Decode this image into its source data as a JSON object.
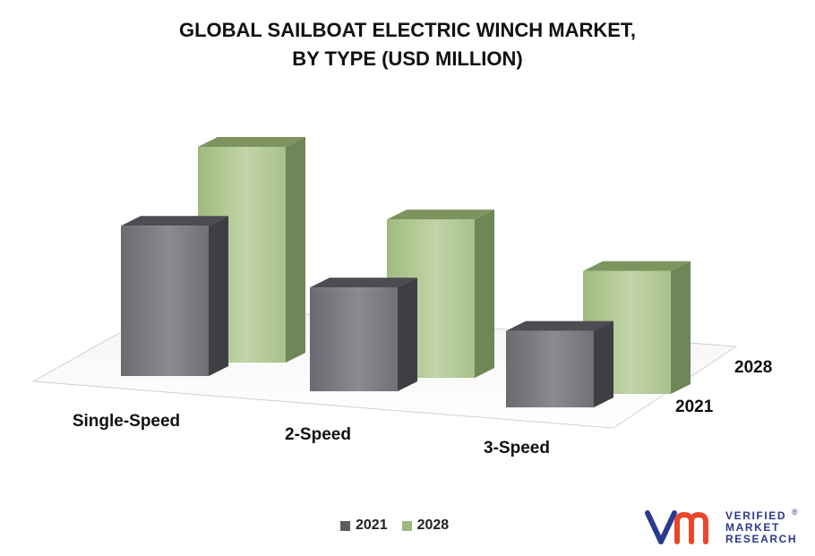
{
  "title": {
    "line1": "GLOBAL SAILBOAT ELECTRIC WINCH MARKET,",
    "line2": "BY TYPE (USD MILLION)"
  },
  "chart_data": {
    "type": "bar",
    "categories": [
      "Single-Speed",
      "2-Speed",
      "3-Speed"
    ],
    "series": [
      {
        "name": "2021",
        "values": [
          5.5,
          3.8,
          2.8
        ],
        "color": "#6d6d73"
      },
      {
        "name": "2028",
        "values": [
          7.9,
          5.8,
          4.5
        ],
        "color": "#a9c08b"
      }
    ],
    "depth_labels": [
      "2021",
      "2028"
    ],
    "style": "3d-columns",
    "grid": false,
    "legend_position": "bottom-center"
  },
  "legend": {
    "items": [
      {
        "label": "2021",
        "color": "#5b5b60"
      },
      {
        "label": "2028",
        "color": "#9cb87c"
      }
    ]
  },
  "brand": {
    "line1": "VERIFIED",
    "line2": "MARKET",
    "line3": "RESEARCH",
    "registered": "®",
    "color": "#2b3990"
  }
}
